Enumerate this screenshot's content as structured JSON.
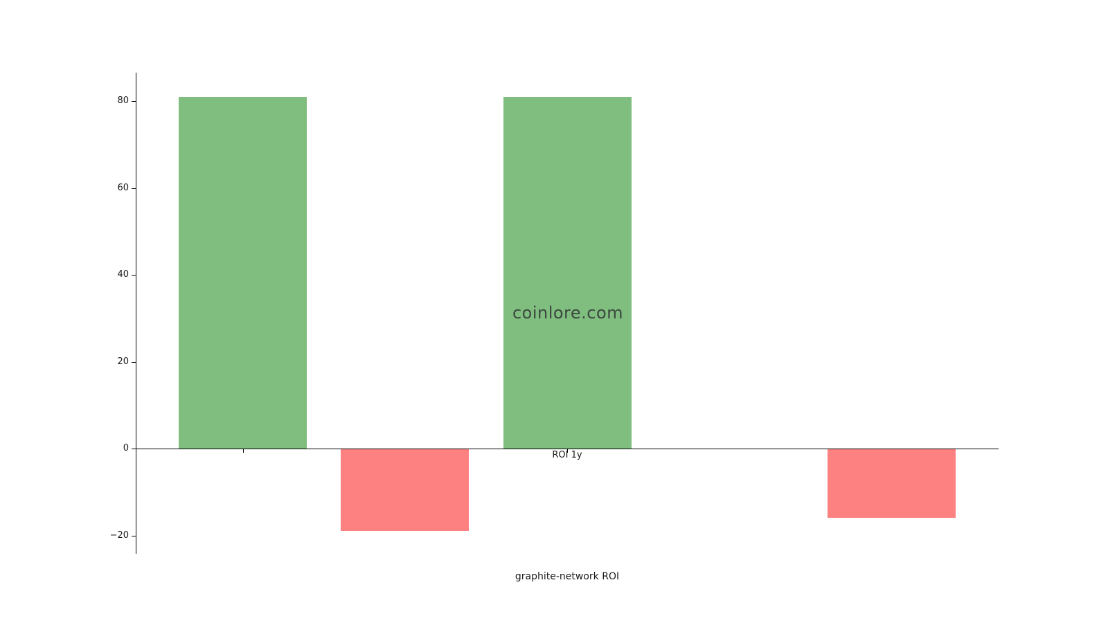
{
  "page": {
    "background": "#ffffff"
  },
  "watermark": {
    "text": "coinlore.com",
    "color": "#3d473f"
  },
  "chart_data": {
    "type": "bar",
    "title": "graphite-network ROI",
    "xlabel": "graphite-network ROI",
    "ylabel": "",
    "grid": false,
    "legend": null,
    "ylim": [
      -24.2,
      86.6
    ],
    "bar_colors": {
      "positive": "#7fbe7f",
      "negative": "#fd8181"
    },
    "y_ticks": [
      {
        "value": 80,
        "label": "80"
      },
      {
        "value": 60,
        "label": "60"
      },
      {
        "value": 40,
        "label": "40"
      },
      {
        "value": 20,
        "label": "20"
      },
      {
        "value": 0,
        "label": "0"
      },
      {
        "value": -20,
        "label": "−20"
      }
    ],
    "bars": [
      {
        "slot": 0,
        "tick_label": "",
        "tick_visible": true,
        "value": 81
      },
      {
        "slot": 1,
        "tick_label": "",
        "tick_visible": false,
        "value": -19
      },
      {
        "slot": 2,
        "tick_label": "ROI 1y",
        "tick_visible": true,
        "value": 81
      },
      {
        "slot": 4,
        "tick_label": "",
        "tick_visible": false,
        "value": -16
      }
    ]
  }
}
